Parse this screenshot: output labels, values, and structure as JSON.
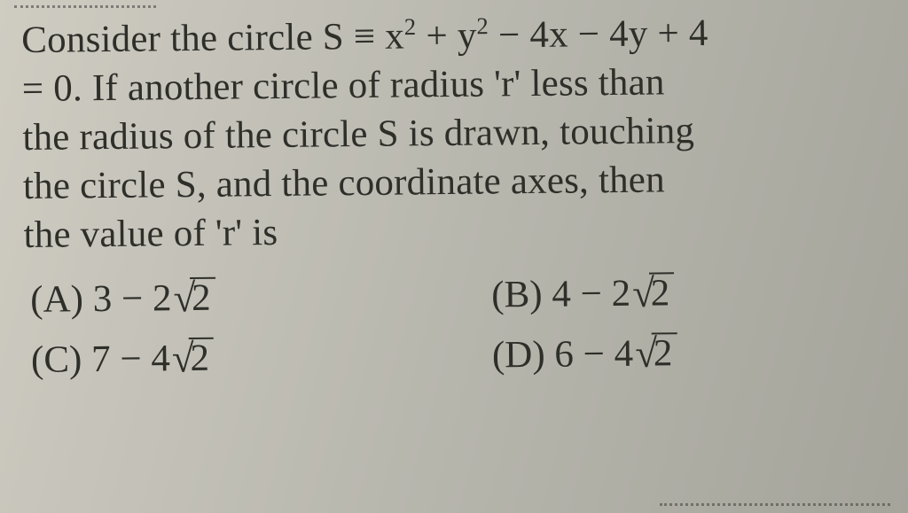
{
  "background_color": "#bfbfb7",
  "text_color": "#2f2f2a",
  "font_family": "Times New Roman",
  "font_size_pt": 32,
  "question": {
    "line1_a": "Consider the circle S ≡ x",
    "line1_sup1": "2",
    "line1_b": " + y",
    "line1_sup2": "2",
    "line1_c": " − 4x − 4y + 4",
    "line2": "= 0. If another circle of radius 'r' less than",
    "line3": "the radius of the circle S is drawn, touching",
    "line4": "the circle S, and the coordinate axes, then",
    "line5": "the value of 'r' is"
  },
  "options": {
    "A": {
      "label": "(A) ",
      "pre": "3 − 2",
      "rad": "2"
    },
    "B": {
      "label": "(B) ",
      "pre": "4 − 2",
      "rad": "2"
    },
    "C": {
      "label": "(C) ",
      "pre": "7 − 4",
      "rad": "2"
    },
    "D": {
      "label": "(D) ",
      "pre": "6 − 4",
      "rad": "2"
    }
  }
}
